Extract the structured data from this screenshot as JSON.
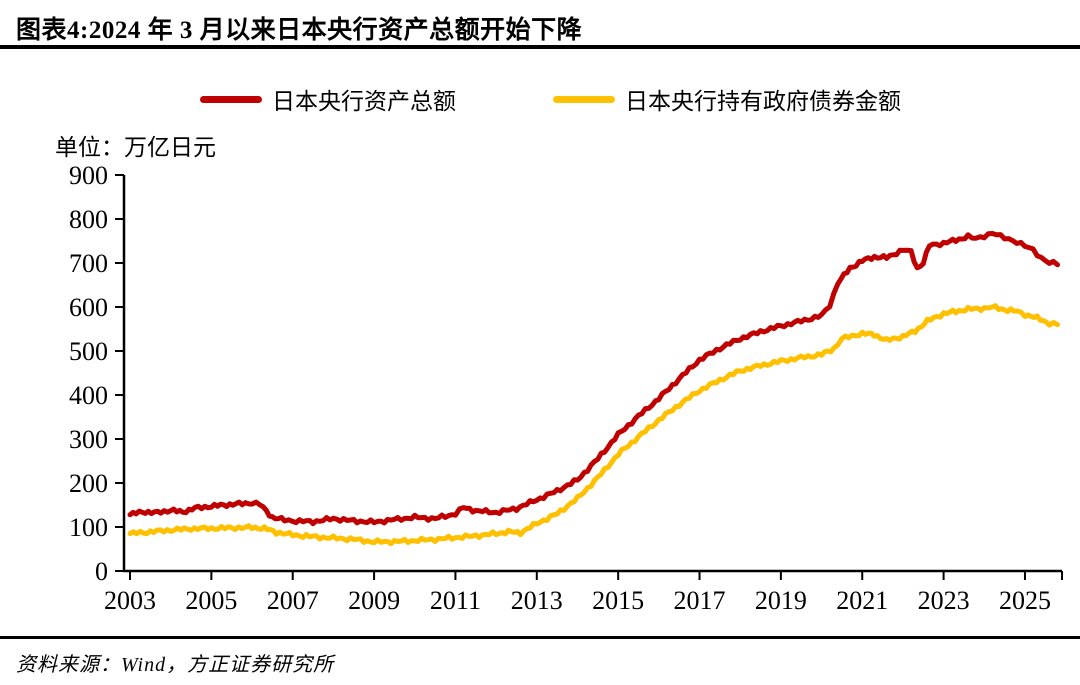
{
  "title": "图表4:2024 年 3 月以来日本央行资产总额开始下降",
  "unit_label": "单位：万亿日元",
  "source": "资料来源：Wind，方正证券研究所",
  "legend": {
    "items": [
      {
        "label": "日本央行资产总额",
        "color": "#C00000"
      },
      {
        "label": "日本央行持有政府债券金额",
        "color": "#FFC000"
      }
    ]
  },
  "chart_data": {
    "type": "line",
    "title": "2024年3月以来日本央行资产总额开始下降",
    "ylabel": "万亿日元",
    "xlabel": "",
    "grid": false,
    "legend_position": "top",
    "xlim": [
      2003,
      2026
    ],
    "ylim": [
      0,
      900
    ],
    "y_ticks": [
      0,
      100,
      200,
      300,
      400,
      500,
      600,
      700,
      800,
      900
    ],
    "x_tick_years": [
      2003,
      2005,
      2007,
      2009,
      2011,
      2013,
      2015,
      2017,
      2019,
      2021,
      2023,
      2025
    ],
    "x_tick_labels": [
      "2003",
      "2005",
      "2007",
      "2009",
      "2011",
      "2013",
      "2015",
      "2017",
      "2019",
      "2021",
      "2023",
      "2025"
    ],
    "series": [
      {
        "name": "日本央行资产总额",
        "color": "#C00000",
        "points": [
          [
            2003.0,
            128
          ],
          [
            2003.3,
            135
          ],
          [
            2003.6,
            132
          ],
          [
            2004.0,
            138
          ],
          [
            2004.3,
            134
          ],
          [
            2004.6,
            143
          ],
          [
            2005.0,
            147
          ],
          [
            2005.3,
            150
          ],
          [
            2005.6,
            152
          ],
          [
            2006.0,
            155
          ],
          [
            2006.2,
            151
          ],
          [
            2006.5,
            122
          ],
          [
            2006.8,
            116
          ],
          [
            2007.0,
            114
          ],
          [
            2007.5,
            112
          ],
          [
            2008.0,
            119
          ],
          [
            2008.5,
            114
          ],
          [
            2009.0,
            111
          ],
          [
            2009.5,
            117
          ],
          [
            2010.0,
            122
          ],
          [
            2010.5,
            119
          ],
          [
            2011.0,
            130
          ],
          [
            2011.2,
            144
          ],
          [
            2011.5,
            137
          ],
          [
            2012.0,
            133
          ],
          [
            2012.5,
            142
          ],
          [
            2013.0,
            162
          ],
          [
            2013.5,
            182
          ],
          [
            2014.0,
            207
          ],
          [
            2014.5,
            255
          ],
          [
            2015.0,
            310
          ],
          [
            2015.5,
            352
          ],
          [
            2016.0,
            392
          ],
          [
            2016.5,
            437
          ],
          [
            2017.0,
            480
          ],
          [
            2017.5,
            506
          ],
          [
            2018.0,
            528
          ],
          [
            2018.5,
            544
          ],
          [
            2019.0,
            557
          ],
          [
            2019.5,
            568
          ],
          [
            2020.0,
            580
          ],
          [
            2020.2,
            604
          ],
          [
            2020.4,
            655
          ],
          [
            2020.7,
            688
          ],
          [
            2021.0,
            705
          ],
          [
            2021.3,
            714
          ],
          [
            2021.6,
            712
          ],
          [
            2022.0,
            730
          ],
          [
            2022.2,
            725
          ],
          [
            2022.35,
            688
          ],
          [
            2022.5,
            700
          ],
          [
            2022.65,
            740
          ],
          [
            2023.0,
            745
          ],
          [
            2023.3,
            752
          ],
          [
            2023.6,
            760
          ],
          [
            2023.8,
            755
          ],
          [
            2024.0,
            762
          ],
          [
            2024.2,
            768
          ],
          [
            2024.4,
            760
          ],
          [
            2024.6,
            755
          ],
          [
            2024.8,
            748
          ],
          [
            2025.0,
            738
          ],
          [
            2025.2,
            730
          ],
          [
            2025.4,
            712
          ],
          [
            2025.6,
            700
          ],
          [
            2025.8,
            698
          ]
        ]
      },
      {
        "name": "日本央行持有政府债券金额",
        "color": "#FFC000",
        "points": [
          [
            2003.0,
            85
          ],
          [
            2003.5,
            89
          ],
          [
            2004.0,
            93
          ],
          [
            2004.5,
            96
          ],
          [
            2005.0,
            97
          ],
          [
            2005.5,
            98
          ],
          [
            2006.0,
            99
          ],
          [
            2006.3,
            97
          ],
          [
            2006.6,
            88
          ],
          [
            2007.0,
            82
          ],
          [
            2007.5,
            78
          ],
          [
            2008.0,
            75
          ],
          [
            2008.5,
            72
          ],
          [
            2009.0,
            66
          ],
          [
            2009.5,
            67
          ],
          [
            2010.0,
            69
          ],
          [
            2010.5,
            72
          ],
          [
            2011.0,
            76
          ],
          [
            2011.5,
            80
          ],
          [
            2012.0,
            85
          ],
          [
            2012.3,
            89
          ],
          [
            2012.6,
            87
          ],
          [
            2013.0,
            108
          ],
          [
            2013.5,
            130
          ],
          [
            2014.0,
            165
          ],
          [
            2014.5,
            212
          ],
          [
            2015.0,
            265
          ],
          [
            2015.5,
            305
          ],
          [
            2016.0,
            343
          ],
          [
            2016.5,
            378
          ],
          [
            2017.0,
            410
          ],
          [
            2017.5,
            434
          ],
          [
            2018.0,
            455
          ],
          [
            2018.5,
            467
          ],
          [
            2019.0,
            477
          ],
          [
            2019.5,
            485
          ],
          [
            2020.0,
            492
          ],
          [
            2020.3,
            505
          ],
          [
            2020.5,
            528
          ],
          [
            2021.0,
            540
          ],
          [
            2021.3,
            537
          ],
          [
            2021.6,
            524
          ],
          [
            2022.0,
            533
          ],
          [
            2022.3,
            545
          ],
          [
            2022.6,
            568
          ],
          [
            2023.0,
            585
          ],
          [
            2023.3,
            590
          ],
          [
            2023.6,
            595
          ],
          [
            2024.0,
            597
          ],
          [
            2024.2,
            600
          ],
          [
            2024.5,
            594
          ],
          [
            2024.8,
            590
          ],
          [
            2025.0,
            583
          ],
          [
            2025.3,
            575
          ],
          [
            2025.6,
            563
          ],
          [
            2025.8,
            560
          ]
        ]
      }
    ]
  }
}
